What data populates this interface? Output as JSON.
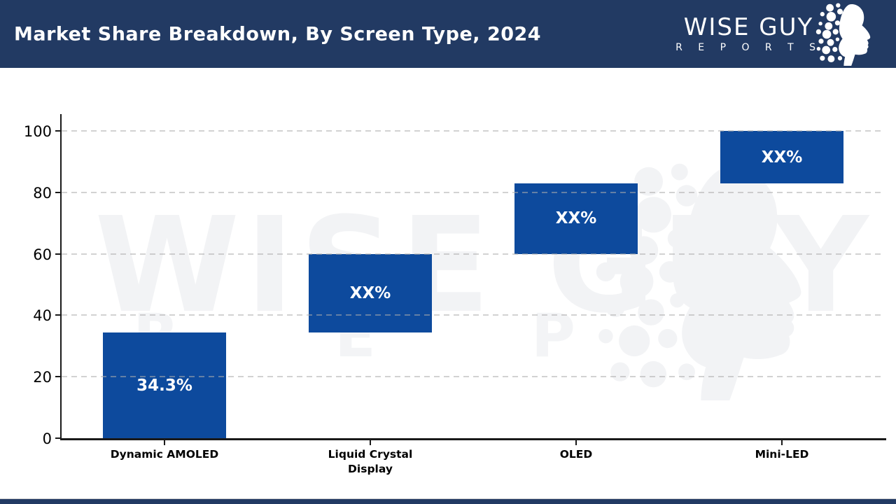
{
  "header": {
    "title": "Market Share Breakdown, By Screen Type, 2024",
    "background_color": "#223a63",
    "brand": {
      "line1": "WISE GUY",
      "line2": "R E P O R T S"
    }
  },
  "watermark": {
    "line1": "WISE GUY",
    "line2": "R E P O R T S"
  },
  "colors": {
    "header_navy": "#223a63",
    "bar_blue": "#0d4a9d",
    "bar_label_white": "#ffffff",
    "watermark_gray": "#f2f3f5",
    "grid_gray": "#d8d8d8"
  },
  "chart_data": {
    "type": "bar",
    "subtype": "waterfall",
    "title": "Market Share Breakdown, By Screen Type, 2024",
    "categories": [
      "Dynamic AMOLED",
      "Liquid Crystal Display",
      "OLED",
      "Mini-LED"
    ],
    "bars": [
      {
        "category": "Dynamic AMOLED",
        "base": 0,
        "top": 34.3,
        "label": "34.3%"
      },
      {
        "category": "Liquid Crystal Display",
        "base": 34.3,
        "top": 60,
        "label": "XX%"
      },
      {
        "category": "OLED",
        "base": 60,
        "top": 82.9,
        "label": "XX%"
      },
      {
        "category": "Mini-LED",
        "base": 82.9,
        "top": 100,
        "label": "XX%"
      }
    ],
    "bar_color": "#0d4a9d",
    "label_color": "#ffffff",
    "xlabel": "",
    "ylabel": "",
    "yticks": [
      0,
      20,
      40,
      60,
      80,
      100
    ],
    "ylim": [
      0,
      105
    ],
    "grid": {
      "axis": "y",
      "style": "dashed",
      "on": true
    },
    "legend": null
  }
}
